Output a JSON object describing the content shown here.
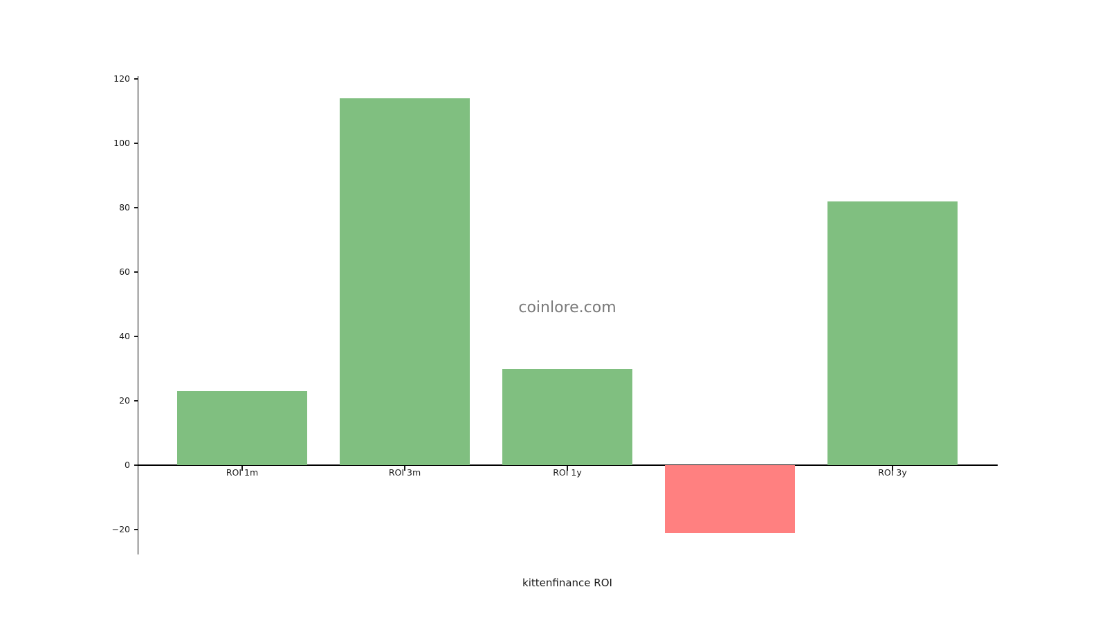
{
  "title": "kittenfinance ROI",
  "watermark": "coinlore.com",
  "colors": {
    "positive_bar": "#80bf80",
    "negative_bar": "#ff8080",
    "axis": "#000000",
    "tick_text": "#1a1a1a",
    "watermark_text": "#7a7a7a",
    "background": "#ffffff"
  },
  "chart_data": {
    "type": "bar",
    "title": "kittenfinance ROI",
    "watermark": "coinlore.com",
    "categories": [
      "ROI 1m",
      "ROI 3m",
      "ROI 1y",
      "",
      "ROI 3y"
    ],
    "values": [
      23,
      114,
      30,
      -21,
      82
    ],
    "bar_colors": [
      "#80bf80",
      "#80bf80",
      "#80bf80",
      "#ff8080",
      "#80bf80"
    ],
    "yticks": [
      120,
      100,
      80,
      60,
      40,
      20,
      0,
      -20
    ],
    "ytick_labels": [
      "120",
      "100",
      "80",
      "60",
      "40",
      "20",
      "0",
      "−20"
    ],
    "ylim": [
      -27.8,
      120.8
    ],
    "xlabel": "",
    "ylabel": "",
    "grid": false,
    "legend": "none",
    "note_hidden_label": "fourth bar tick label not visible (covered by negative bar)"
  }
}
